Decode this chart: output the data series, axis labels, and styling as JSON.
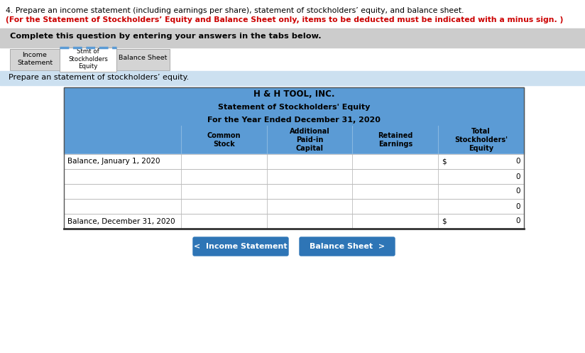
{
  "title_line1": "4. Prepare an income statement (including earnings per share), statement of stockholders’ equity, and balance sheet.",
  "title_bold_part": "(For the Statement of Stockholders’ Equity and Balance Sheet only, items to be deducted must be indicated with a minus sign. )",
  "complete_text": "Complete this question by entering your answers in the tabs below.",
  "prepare_text": "Prepare an statement of stockholders’ equity.",
  "tab1_line1": "Income",
  "tab1_line2": "Statement",
  "tab2_line1": "Stmt of",
  "tab2_line2": "Stockholders",
  "tab2_line3": "Equity",
  "tab3": "Balance Sheet",
  "company_name": "H & H TOOL, INC.",
  "statement_title": "Statement of Stockholders' Equity",
  "period": "For the Year Ended December 31, 2020",
  "col_headers": [
    "Common\nStock",
    "Additional\nPaid-in\nCapital",
    "Retained\nEarnings",
    "Total\nStockholders'\nEquity"
  ],
  "row_labels": [
    "Balance, January 1, 2020",
    "",
    "",
    "",
    "Balance, December 31, 2020"
  ],
  "total_col_values": [
    "$ 0",
    "0",
    "0",
    "0",
    "$ 0"
  ],
  "btn1": "<  Income Statement",
  "btn2": "Balance Sheet  >",
  "bg_color": "#e8e8e8",
  "table_blue": "#5b9bd5",
  "tab_active_bg": "#ffffff",
  "tab_inactive_bg": "#d4d4d4",
  "btn_color": "#2e75b6",
  "btn_text_color": "#ffffff",
  "red_color": "#cc0000",
  "prepare_bg": "#cce0f0",
  "complete_bg": "#cccccc",
  "white": "#ffffff",
  "border_color": "#aaaaaa",
  "row_line_color": "#bbbbbb"
}
